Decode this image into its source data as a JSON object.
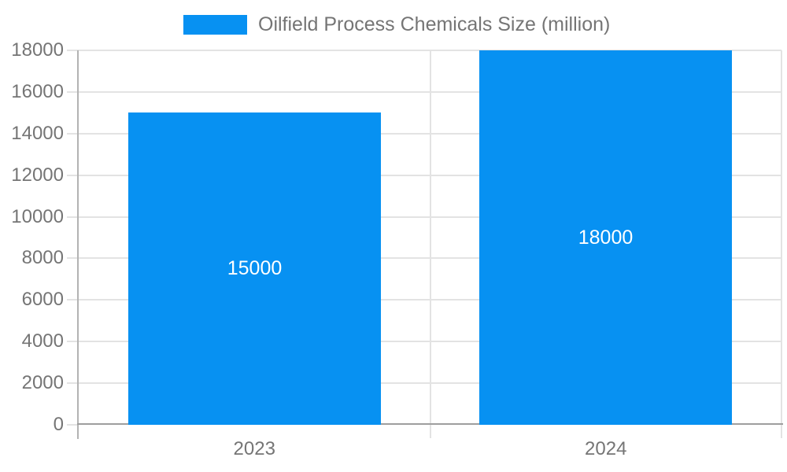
{
  "legend": {
    "label": "Oilfield Process Chemicals Size (million)",
    "swatch_color": "#0791f2"
  },
  "chart_data": {
    "type": "bar",
    "title": "Oilfield Process Chemicals Size (million)",
    "categories": [
      "2023",
      "2024"
    ],
    "series": [
      {
        "name": "Oilfield Process Chemicals Size (million)",
        "values": [
          15000,
          18000
        ]
      }
    ],
    "values": [
      15000,
      18000
    ],
    "bar_labels": [
      "15000",
      "18000"
    ],
    "ylim": [
      0,
      18000
    ],
    "ytick_step": 2000,
    "ytick_labels": [
      "0",
      "2000",
      "4000",
      "6000",
      "8000",
      "10000",
      "12000",
      "14000",
      "16000",
      "18000"
    ],
    "xlabel": "",
    "ylabel": "",
    "grid": true,
    "legend_position": "top",
    "colors": {
      "bar": "#0791f2",
      "bar_label_text": "#ffffff",
      "axis_text": "#757575",
      "gridline": "#e3e3e3",
      "x_axis_line": "#9e9e9e",
      "y_axis_line": "#b3b3b3"
    }
  }
}
